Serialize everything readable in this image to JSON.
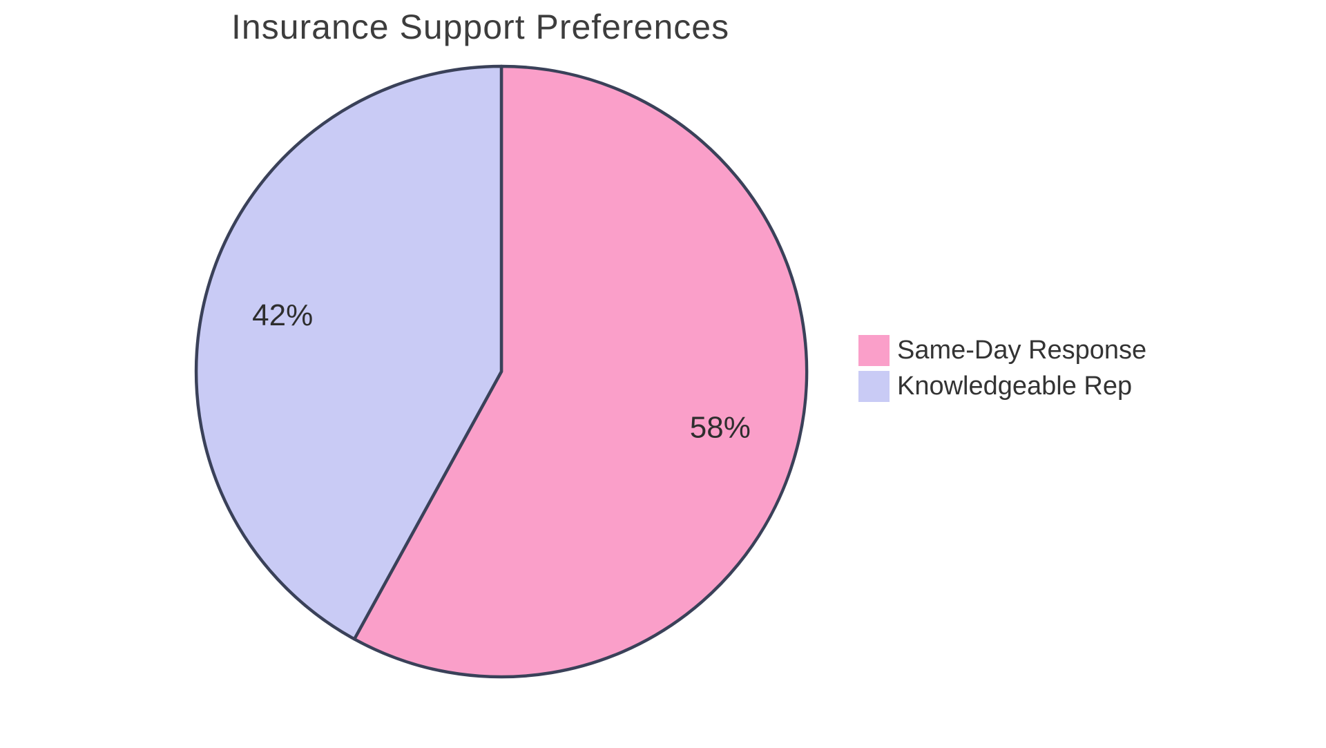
{
  "chart_data": {
    "type": "pie",
    "title": "Insurance Support Preferences",
    "labels": [
      "Same-Day Response",
      "Knowledgeable Rep"
    ],
    "values": [
      58,
      42
    ],
    "value_labels": [
      "58%",
      "42%"
    ],
    "colors": [
      "#FA9FC9",
      "#C9CBF5"
    ],
    "slice_outline_color": "#3A4159",
    "percent_label_color": "#2E2E2E",
    "title_color": "#3D3D3D",
    "legend_text_color": "#333333",
    "start_angle": "top",
    "direction": "clockwise",
    "label_distance": 0.74,
    "legend": {
      "position": "right",
      "entries": [
        {
          "label": "Same-Day Response",
          "color": "#FA9FC9"
        },
        {
          "label": "Knowledgeable Rep",
          "color": "#C9CBF5"
        }
      ]
    }
  }
}
